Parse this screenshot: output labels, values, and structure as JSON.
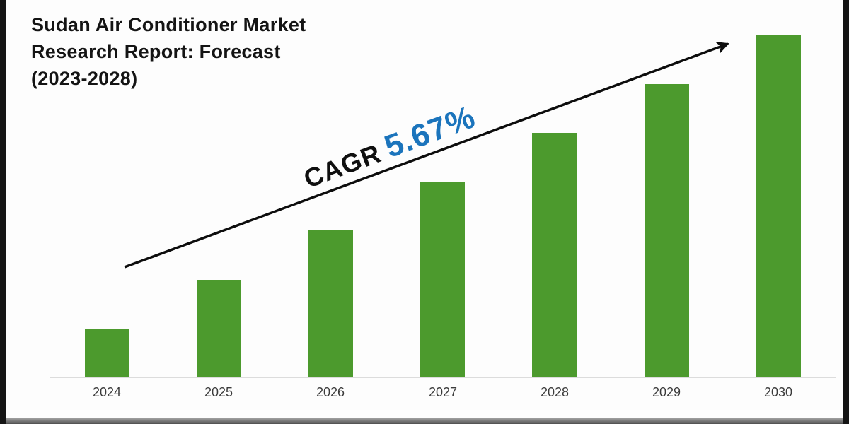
{
  "page": {
    "background": "#fdfdfd",
    "side_border_color": "#141414",
    "bottom_bar_gradient_top": "#a0a0a0",
    "bottom_bar_gradient_bottom": "#4f4f4f"
  },
  "title": {
    "lines": [
      "Sudan Air Conditioner Market",
      "Research Report: Forecast",
      "(2023-2028)"
    ],
    "color": "#141414"
  },
  "annotation": {
    "label": "CAGR",
    "value": "5.67%",
    "label_color": "#0f0f0f",
    "value_color": "#1b74bc",
    "arrow_color": "#0d0d0d"
  },
  "chart_data": {
    "type": "bar",
    "title": "Sudan Air Conditioner Market Research Report: Forecast (2023-2028)",
    "categories": [
      "2024",
      "2025",
      "2026",
      "2027",
      "2028",
      "2029",
      "2030"
    ],
    "values": [
      1,
      2,
      3,
      4,
      5,
      6,
      7
    ],
    "y_axis_shown": false,
    "values_note": "No y-axis in figure; bar heights grow linearly, estimated relative ratio 1:2:3:4:5:6:7",
    "xlabel": "",
    "ylabel": "",
    "ylim": [
      0,
      7.3
    ],
    "grid": false,
    "legend": false,
    "bar_color": "#4c9a2d",
    "axis_line_color": "#dcdcdc",
    "tick_label_color": "#3b3b3b",
    "annotations": [
      "CAGR 5.67% (rotated along upward trend arrow)"
    ]
  }
}
